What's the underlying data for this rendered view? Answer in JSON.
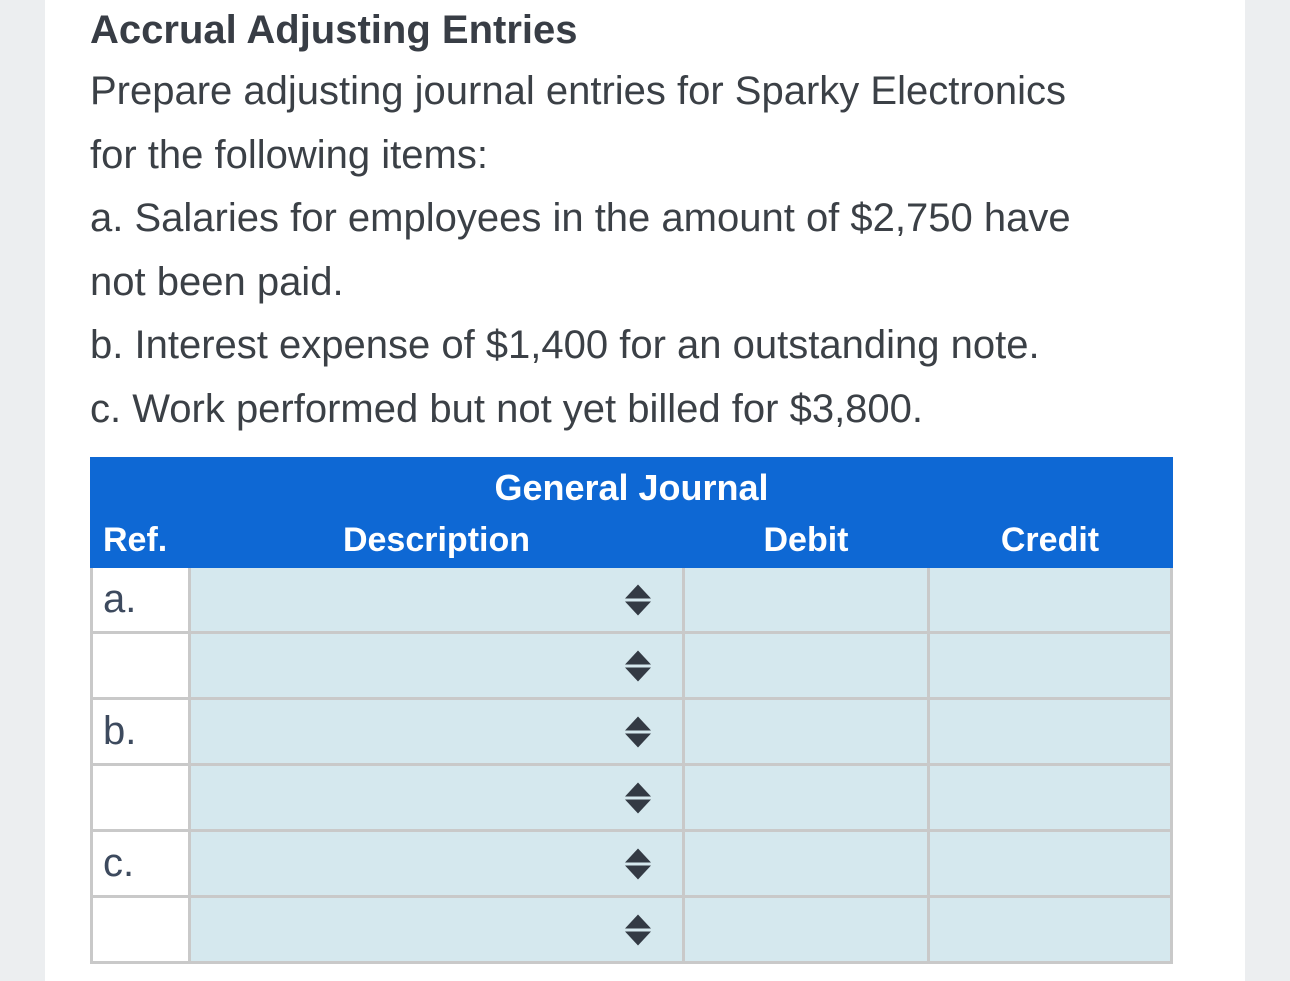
{
  "content": {
    "title": "Accrual Adjusting Entries",
    "intro_lines": [
      "Prepare adjusting journal entries for Sparky Electronics",
      "for the following items:",
      "a. Salaries for employees in the amount of $2,750 have",
      "not been paid.",
      "b. Interest expense of $1,400 for an outstanding note.",
      "c. Work performed but not yet billed for $3,800."
    ]
  },
  "journal": {
    "title": "General Journal",
    "columns": {
      "ref": "Ref.",
      "description": "Description",
      "debit": "Debit",
      "credit": "Credit"
    },
    "rows": [
      {
        "ref": "a.",
        "description": "",
        "debit": "",
        "credit": ""
      },
      {
        "ref": "",
        "description": "",
        "debit": "",
        "credit": ""
      },
      {
        "ref": "b.",
        "description": "",
        "debit": "",
        "credit": ""
      },
      {
        "ref": "",
        "description": "",
        "debit": "",
        "credit": ""
      },
      {
        "ref": "c.",
        "description": "",
        "debit": "",
        "credit": ""
      },
      {
        "ref": "",
        "description": "",
        "debit": "",
        "credit": ""
      }
    ],
    "colors": {
      "header_bg": "#0e68d4",
      "header_text": "#ffffff",
      "cell_bg": "#d5e8ee",
      "grid_line": "#c9c9c9",
      "arrow": "#333a44",
      "page_bg": "#eceef0"
    }
  }
}
